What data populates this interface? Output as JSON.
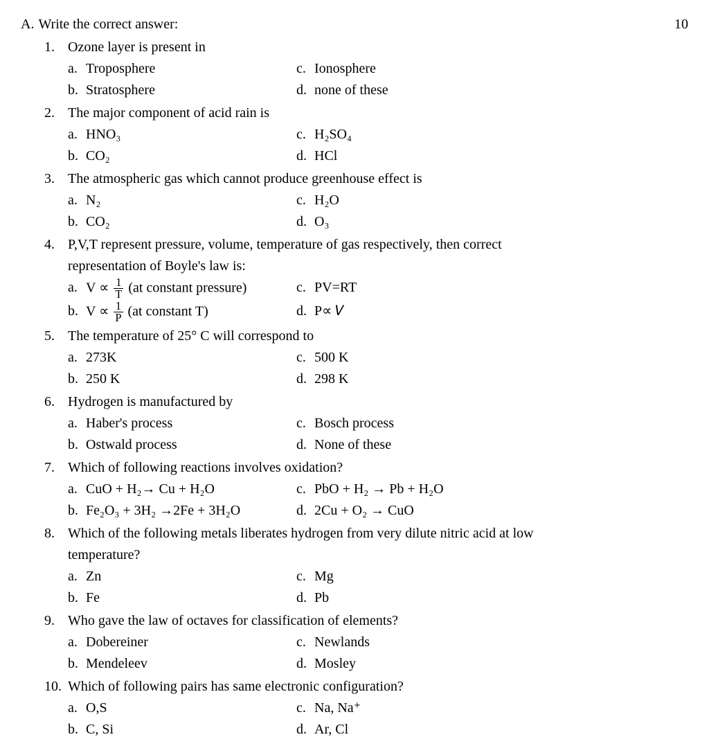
{
  "section": {
    "letter": "A.",
    "title": "Write the correct answer:",
    "marks": "10"
  },
  "questions": [
    {
      "num": "1.",
      "stem": "Ozone layer is present in",
      "opts": {
        "a": "a.",
        "at": "Troposphere",
        "b": "b.",
        "bt": "Stratosphere",
        "c": "c.",
        "ct": "Ionosphere",
        "d": "d.",
        "dt": "none of these"
      }
    },
    {
      "num": "2.",
      "stem": "The major component of acid rain is",
      "opts": {
        "a": "a.",
        "at": "HNO₃",
        "b": "b.",
        "bt": "CO₂",
        "c": "c.",
        "ct": "H₂SO₄",
        "d": "d.",
        "dt": "HCl"
      }
    },
    {
      "num": "3.",
      "stem": "The atmospheric gas which cannot produce greenhouse effect is",
      "opts": {
        "a": "a.",
        "at": "N₂",
        "b": "b.",
        "bt": "CO₂",
        "c": "c.",
        "ct": "H₂O",
        "d": "d.",
        "dt": "O₃"
      }
    },
    {
      "num": "4.",
      "stem": "P,V,T represent pressure, volume, temperature of gas respectively, then correct",
      "stem2": "representation of Boyle's law is:",
      "opts": {
        "a": "a.",
        "at_pre": "V ∝ ",
        "at_num": "1",
        "at_den": "T",
        "at_post": " (at constant pressure)",
        "b": "b.",
        "bt_pre": "V ∝ ",
        "bt_num": "1",
        "bt_den": "P",
        "bt_post": " (at constant T)",
        "c": "c.",
        "ct": "PV=RT",
        "d": "d.",
        "dt": "P∝ 𝑉"
      }
    },
    {
      "num": "5.",
      "stem": "The temperature of 25° C will correspond to",
      "opts": {
        "a": "a.",
        "at": "273K",
        "b": "b.",
        "bt": "250 K",
        "c": "c.",
        "ct": "500 K",
        "d": "d.",
        "dt": "298 K"
      }
    },
    {
      "num": "6.",
      "stem": "Hydrogen is manufactured by",
      "opts": {
        "a": "a.",
        "at": "Haber's process",
        "b": "b.",
        "bt": "Ostwald process",
        "c": "c.",
        "ct": "Bosch process",
        "d": "d.",
        "dt": "None of these"
      }
    },
    {
      "num": "7.",
      "stem": "Which of following reactions involves oxidation?",
      "opts": {
        "a": "a.",
        "at": "CuO + H₂→ Cu + H₂O",
        "b": "b.",
        "bt": "Fe₂O₃ + 3H₂ →2Fe + 3H₂O",
        "c": "c.",
        "ct": "PbO + H₂ → Pb + H₂O",
        "d": "d.",
        "dt": "2Cu + O₂ → CuO"
      }
    },
    {
      "num": "8.",
      "stem": "Which of the following metals liberates hydrogen from very dilute nitric acid at low",
      "stem2": "temperature?",
      "opts": {
        "a": "a.",
        "at": "Zn",
        "b": "b.",
        "bt": "Fe",
        "c": "c.",
        "ct": "Mg",
        "d": "d.",
        "dt": "Pb"
      }
    },
    {
      "num": "9.",
      "stem": "Who gave the law of octaves for classification of elements?",
      "opts": {
        "a": "a.",
        "at": "Dobereiner",
        "b": "b.",
        "bt": "Mendeleev",
        "c": "c.",
        "ct": "Newlands",
        "d": "d.",
        "dt": "Mosley"
      }
    },
    {
      "num": "10.",
      "stem": "Which of following pairs has same electronic configuration?",
      "opts": {
        "a": "a.",
        "at": "O,S",
        "b": "b.",
        "bt": "C, Si",
        "c": "c.",
        "ct": "Na, Na⁺",
        "d": "d.",
        "dt": "Ar, Cl"
      }
    }
  ]
}
